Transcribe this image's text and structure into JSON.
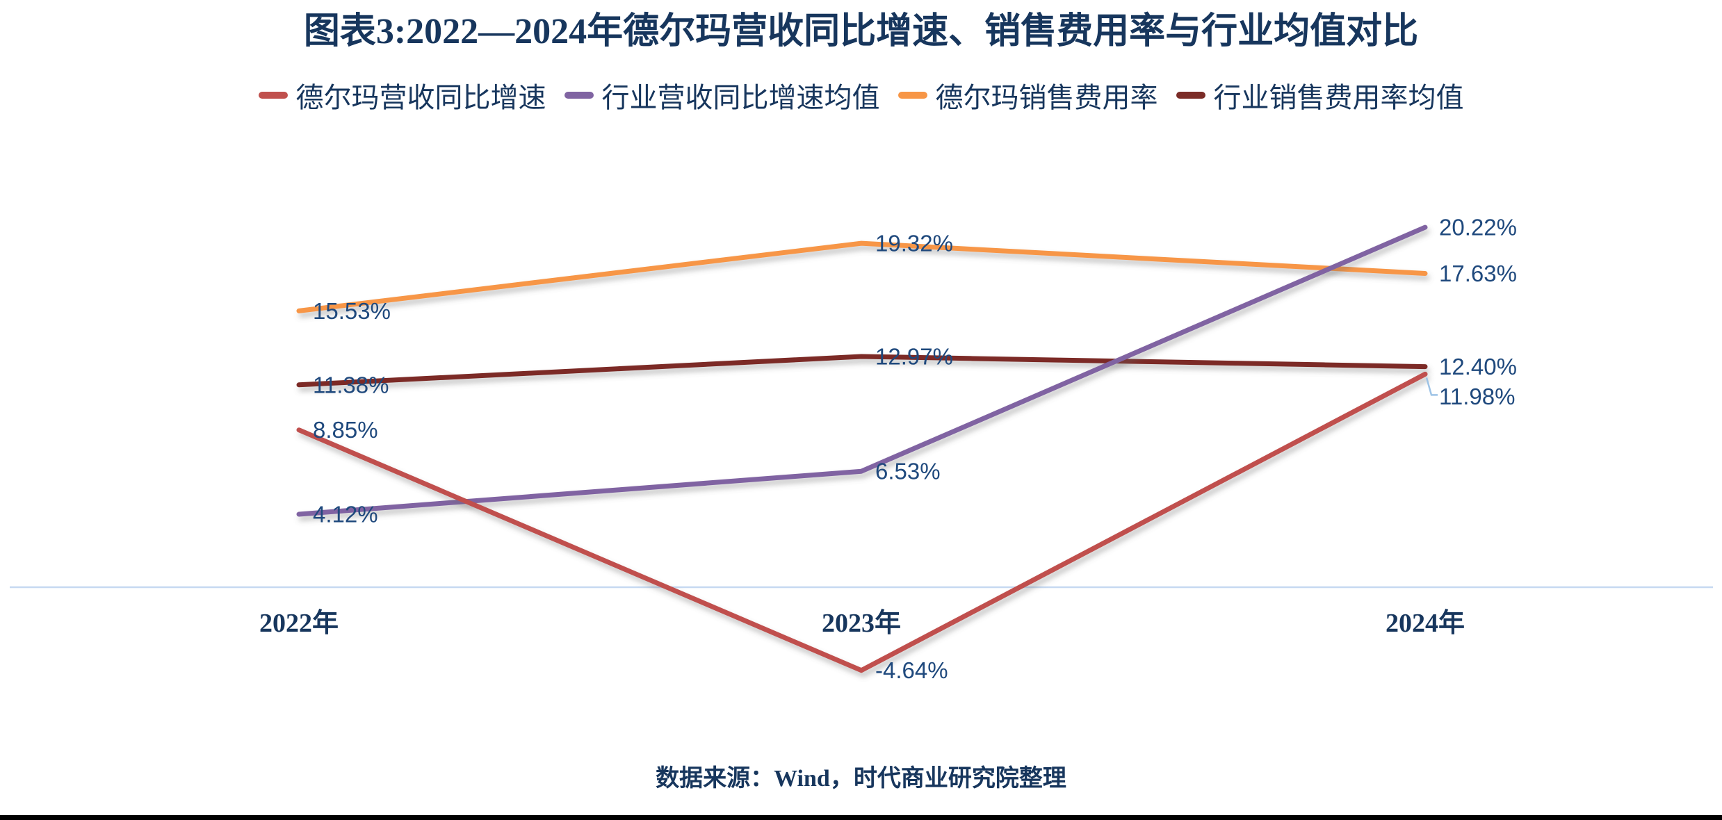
{
  "title": "图表3:2022—2024年德尔玛营收同比增速、销售费用率与行业均值对比",
  "source": "数据来源：Wind，时代商业研究院整理",
  "colors": {
    "title_text": "#17365D",
    "data_label_text": "#1F497D",
    "axis_line": "#C6D9F1",
    "leader_line": "#9DC3E6",
    "bottom_bar": "#000000"
  },
  "chart_data": {
    "type": "line",
    "categories": [
      "2022年",
      "2023年",
      "2024年"
    ],
    "series": [
      {
        "name": "德尔玛营收同比增速",
        "color": "#C0504D",
        "values": [
          8.85,
          -4.64,
          11.98
        ]
      },
      {
        "name": "行业营收同比增速均值",
        "color": "#8064A2",
        "values": [
          4.12,
          6.53,
          20.22
        ]
      },
      {
        "name": "德尔玛销售费用率",
        "color": "#F79646",
        "values": [
          15.53,
          19.32,
          17.63
        ]
      },
      {
        "name": "行业销售费用率均值",
        "color": "#7B2C27",
        "values": [
          11.38,
          12.97,
          12.4
        ]
      }
    ],
    "data_label_format": "0.00%",
    "data_labels_shown": [
      "8.85%",
      "-4.64%",
      "11.98%",
      "4.12%",
      "6.53%",
      "20.22%",
      "15.53%",
      "19.32%",
      "17.63%",
      "11.38%",
      "12.97%",
      "12.40%"
    ],
    "legend_position": "top",
    "grid": false,
    "y_axis_visible": false,
    "x_axis_line_at_zero": true,
    "ylim_implied": [
      -6,
      22
    ]
  }
}
